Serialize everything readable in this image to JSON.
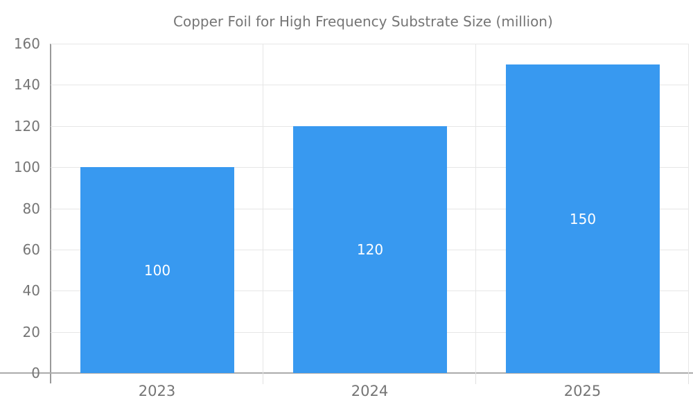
{
  "legend": {
    "label": "Copper Foil for High Frequency Substrate Size (million)"
  },
  "colors": {
    "bar": "#3899f0",
    "bar_label_text": "#ffffff",
    "axis_text": "#757575",
    "grid_line": "#e6e6e6",
    "y_axis_line": "#999999",
    "x_axis_line": "#ababab"
  },
  "chart_data": {
    "type": "bar",
    "title": "Copper Foil for High Frequency Substrate Size (million)",
    "categories": [
      "2023",
      "2024",
      "2025"
    ],
    "values": [
      100,
      120,
      150
    ],
    "data_labels": [
      "100",
      "120",
      "150"
    ],
    "xlabel": "",
    "ylabel": "",
    "ylim": [
      0,
      160
    ],
    "yticks": [
      0,
      20,
      40,
      60,
      80,
      100,
      120,
      140,
      160
    ],
    "grid": true,
    "legend_position": "top",
    "legend_entries": [
      "Copper Foil for High Frequency Substrate Size (million)"
    ],
    "bar_label_position": "inside-center"
  }
}
